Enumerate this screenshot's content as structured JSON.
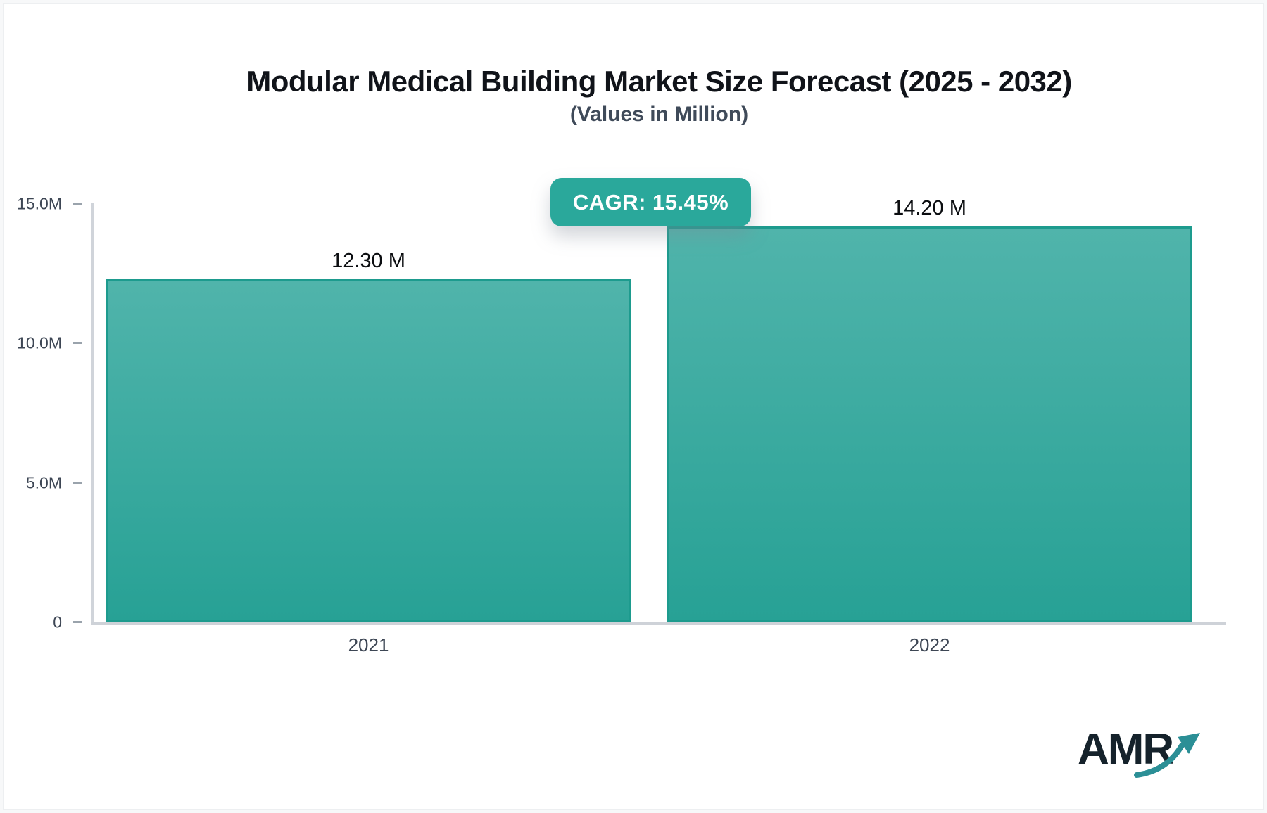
{
  "page": {
    "background_color": "#ffffff",
    "frame_color": "#f7f8f9"
  },
  "chart_data": {
    "type": "bar",
    "title": "Modular Medical Building Market Size Forecast (2025 - 2032)",
    "subtitle": "(Values in Million)",
    "cagr_label": "CAGR: 15.45%",
    "categories": [
      "2021",
      "2022"
    ],
    "values": [
      12.3,
      14.2
    ],
    "value_labels": [
      "12.30 M",
      "14.20 M"
    ],
    "xlabel": "",
    "ylabel": "",
    "ylim": [
      0,
      15
    ],
    "yticks": [
      {
        "label": "0",
        "value": 0
      },
      {
        "label": "5.0M",
        "value": 5
      },
      {
        "label": "10.0M",
        "value": 10
      },
      {
        "label": "15.0M",
        "value": 15
      }
    ],
    "grid": false,
    "legend": false,
    "colors": {
      "bar_gradient_top": "#50b4ab",
      "bar_gradient_bottom": "#27a195",
      "bar_border": "#1d9b8e",
      "badge_background": "#2aa89b",
      "badge_text": "#ffffff",
      "axis_line": "#d0d4da",
      "tick_text": "#3d4654",
      "title_text": "#101319",
      "subtitle_text": "#3f4a59",
      "value_label_text": "#0b0d10"
    }
  },
  "branding": {
    "logo_text": "AMR",
    "logo_text_color": "#15222b",
    "logo_arrow_color": "#2b8f96",
    "logo_arrow_icon": "trending-up-arrow"
  }
}
